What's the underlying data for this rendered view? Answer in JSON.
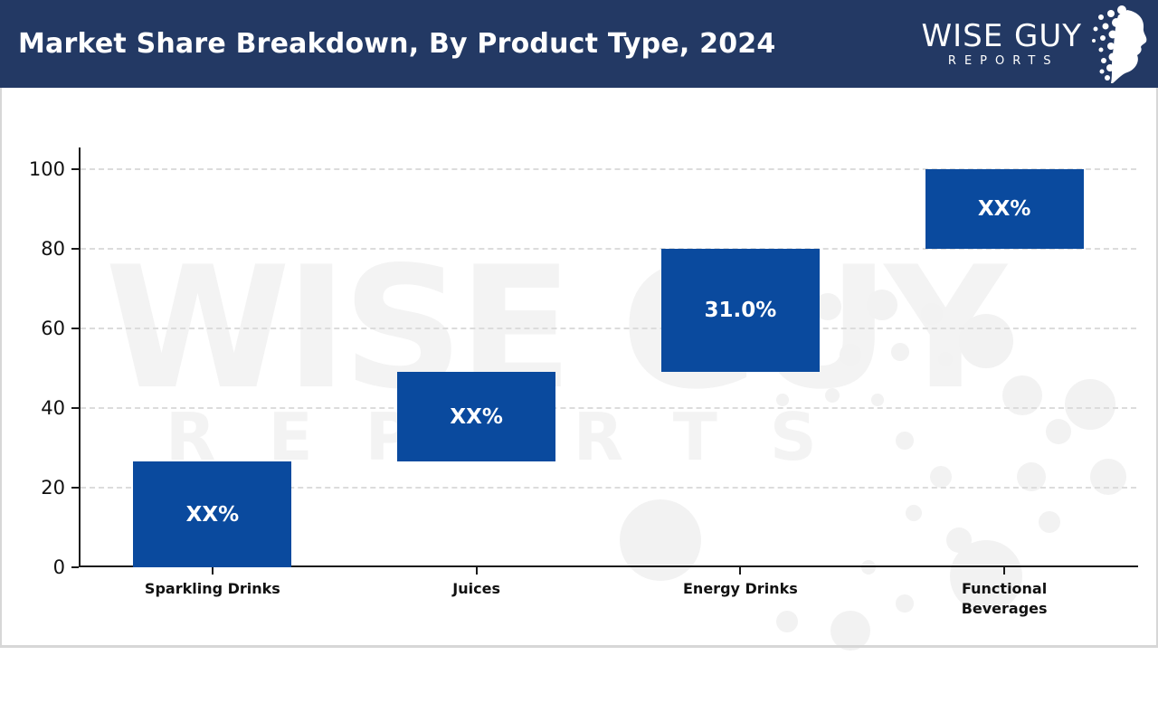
{
  "header": {
    "title": "Market Share Breakdown, By Product Type, 2024",
    "logo_line1": "WISE GUY",
    "logo_line2": "REPORTS"
  },
  "watermark": {
    "line1": "WISE GUY",
    "line2": "REPORTS"
  },
  "chart_data": {
    "type": "bar",
    "subtype": "floating-waterfall",
    "title": "Market Share Breakdown, By Product Type, 2024",
    "xlabel": "",
    "ylabel": "",
    "categories": [
      "Sparkling Drinks",
      "Juices",
      "Energy Drinks",
      "Functional\nBeverages"
    ],
    "bars": [
      {
        "category": "Sparkling Drinks",
        "start": 0,
        "end": 26.5,
        "value_label": "XX%"
      },
      {
        "category": "Juices",
        "start": 26.5,
        "end": 49.0,
        "value_label": "XX%"
      },
      {
        "category": "Energy Drinks",
        "start": 49.0,
        "end": 80.0,
        "value_label": "31.0%"
      },
      {
        "category": "Functional\nBeverages",
        "start": 80.0,
        "end": 100.0,
        "value_label": "XX%"
      }
    ],
    "yticks": [
      0,
      20,
      40,
      60,
      80,
      100
    ],
    "ylim": [
      0,
      105
    ],
    "grid": "horizontal-dashed",
    "legend": "none",
    "bar_color": "#0a4a9e"
  },
  "colors": {
    "header_bg": "#233964",
    "bar_fill": "#0a4a9e",
    "gridline": "#dcdcdc",
    "axis": "#1a1a1a",
    "watermark": "#f3f3f3",
    "background": "#ffffff"
  }
}
